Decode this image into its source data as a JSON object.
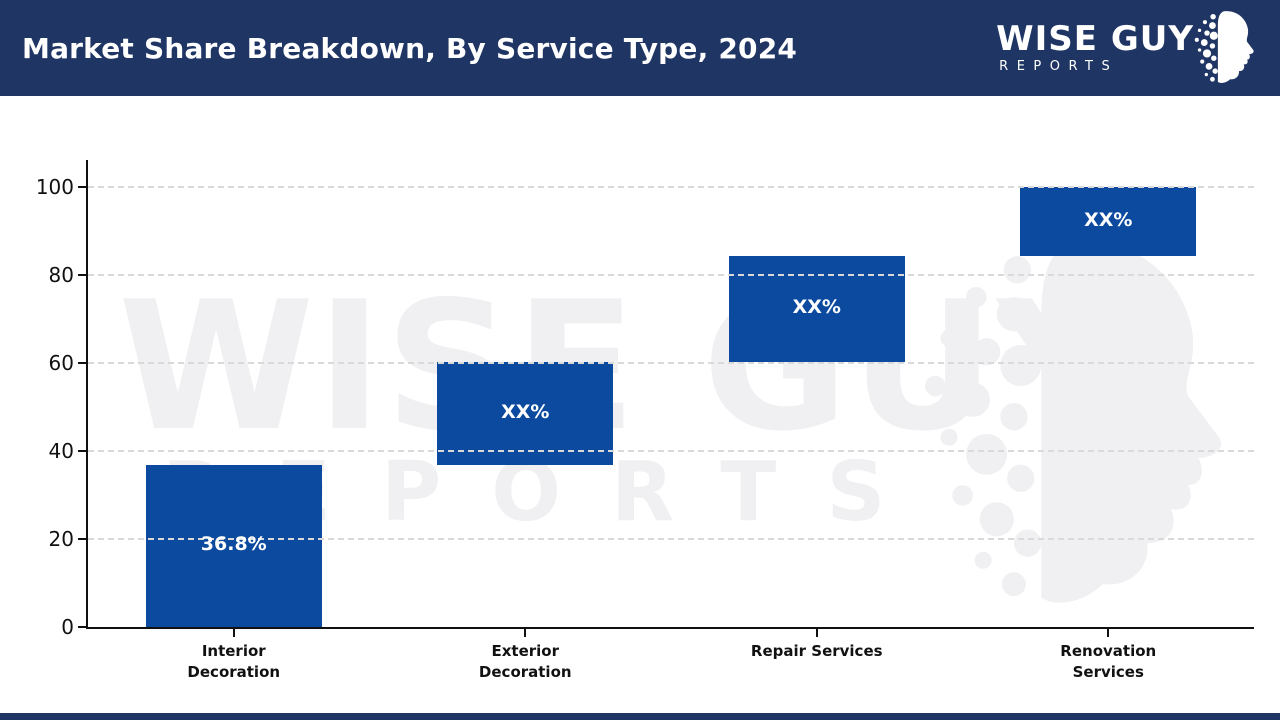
{
  "header": {
    "title": "Market Share Breakdown, By Service Type, 2024",
    "logo": {
      "line1": "WISE GUY",
      "line2": "REPORTS"
    }
  },
  "watermark": {
    "line1": "WISE GUY",
    "line2": "REPORTS"
  },
  "theme": {
    "header_navy": "#1f3564",
    "bar_blue": "#0b4a9f",
    "watermark_gray": "#f0f0f3",
    "gridline_gray": "#d9d9d9",
    "axis_black": "#111111"
  },
  "chart_data": {
    "type": "bar",
    "subtype": "floating-waterfall",
    "title": "Market Share Breakdown, By Service Type, 2024",
    "categories": [
      "Interior Decoration",
      "Exterior Decoration",
      "Repair Services",
      "Renovation Services"
    ],
    "bars": [
      {
        "category": "Interior Decoration",
        "from": 0,
        "to": 36.8,
        "label": "36.8%"
      },
      {
        "category": "Exterior Decoration",
        "from": 36.8,
        "to": 60.2,
        "label": "XX%"
      },
      {
        "category": "Repair Services",
        "from": 60.2,
        "to": 84.3,
        "label": "XX%"
      },
      {
        "category": "Renovation Services",
        "from": 84.3,
        "to": 100,
        "label": "XX%"
      }
    ],
    "yticks": [
      0,
      20,
      40,
      60,
      80,
      100
    ],
    "ylim": [
      0,
      106
    ],
    "xlabel": "",
    "ylabel": "",
    "grid": "dashed-horizontal-over-bars",
    "legend": "none",
    "bar_label_color": "#ffffff"
  }
}
